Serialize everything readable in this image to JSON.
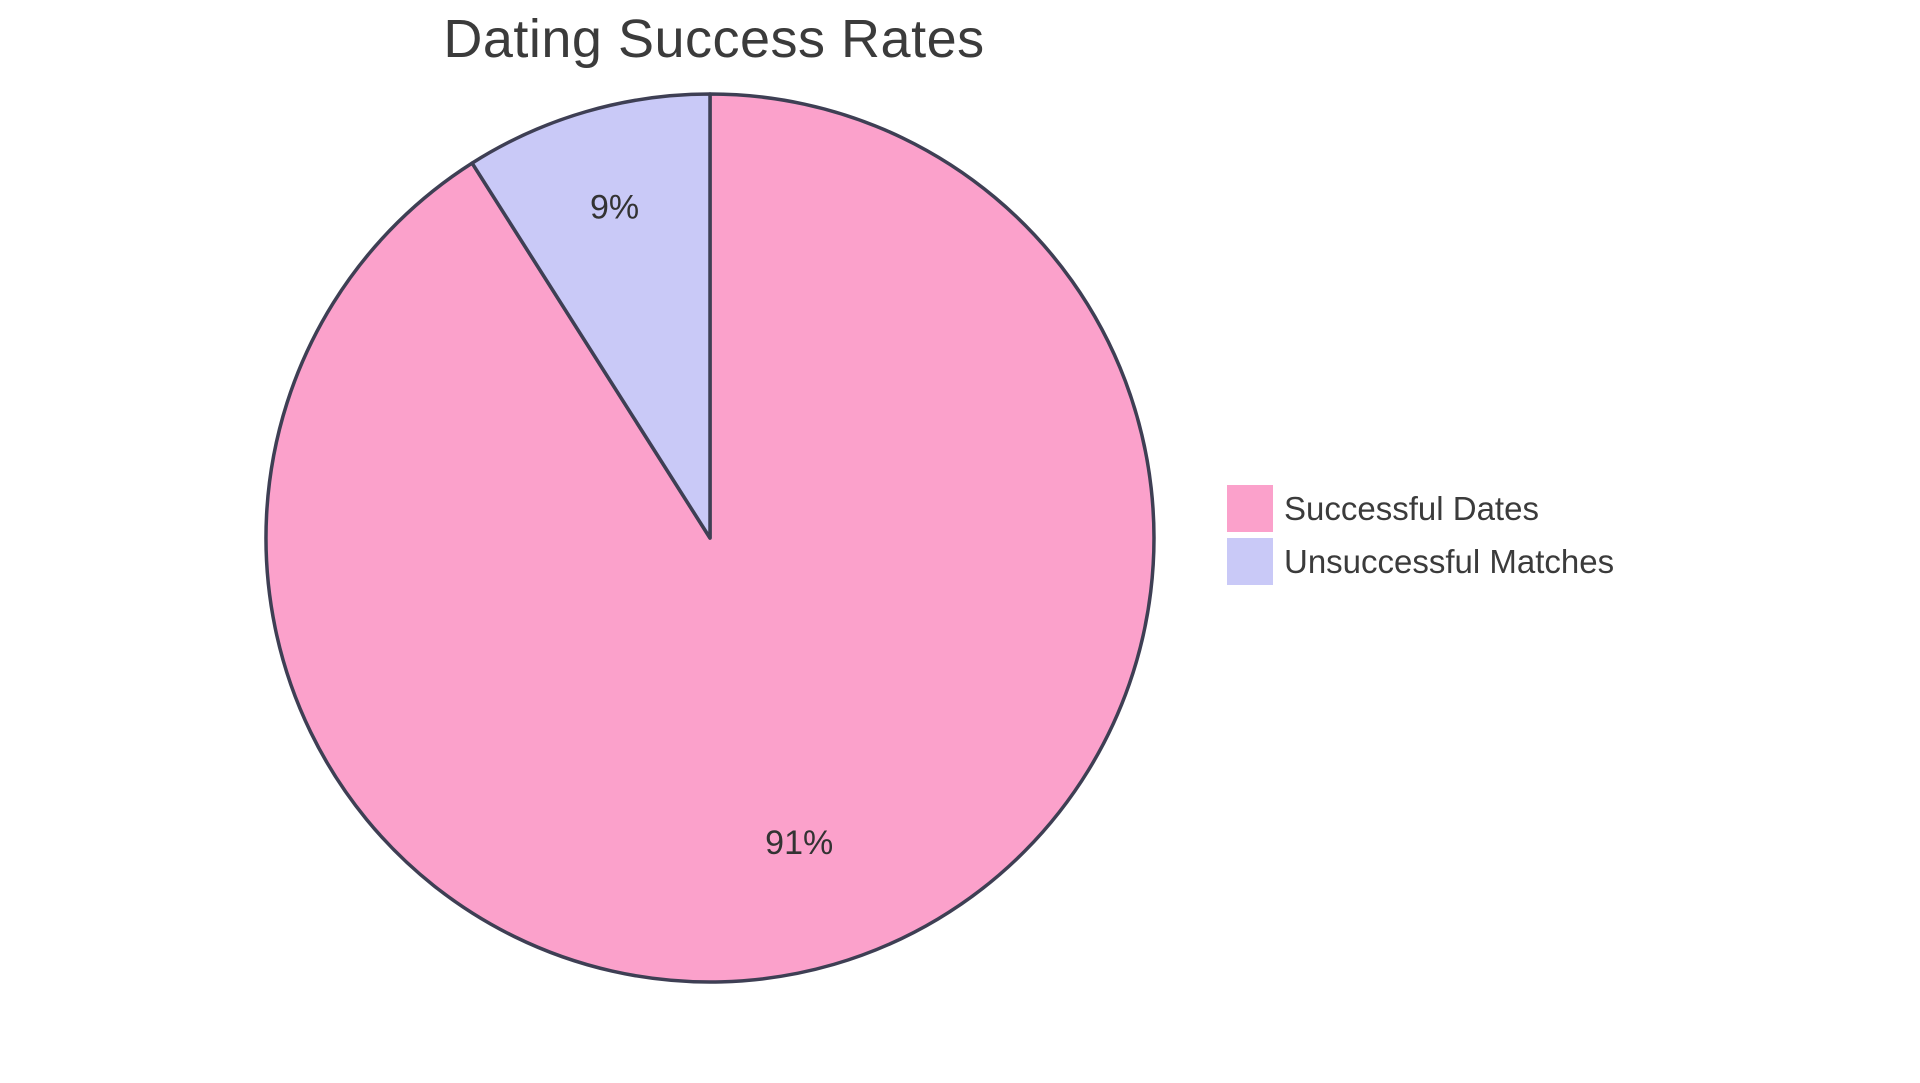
{
  "chart_data": {
    "type": "pie",
    "title": "Dating Success Rates",
    "labels": [
      "Successful Dates",
      "Unsuccessful Matches"
    ],
    "values": [
      91,
      9
    ],
    "value_labels": [
      "91%",
      "9%"
    ],
    "colors": [
      "#FBA1CB",
      "#C9C9F7"
    ],
    "slice_border_color": "#3E3F54",
    "label_text_color": "#333333",
    "title_text_color": "#3B3B3B",
    "legend_position": "right",
    "start_angle": "12 o'clock",
    "direction": "clockwise",
    "legend_entries": [
      "Successful Dates",
      "Unsuccessful Matches"
    ]
  }
}
